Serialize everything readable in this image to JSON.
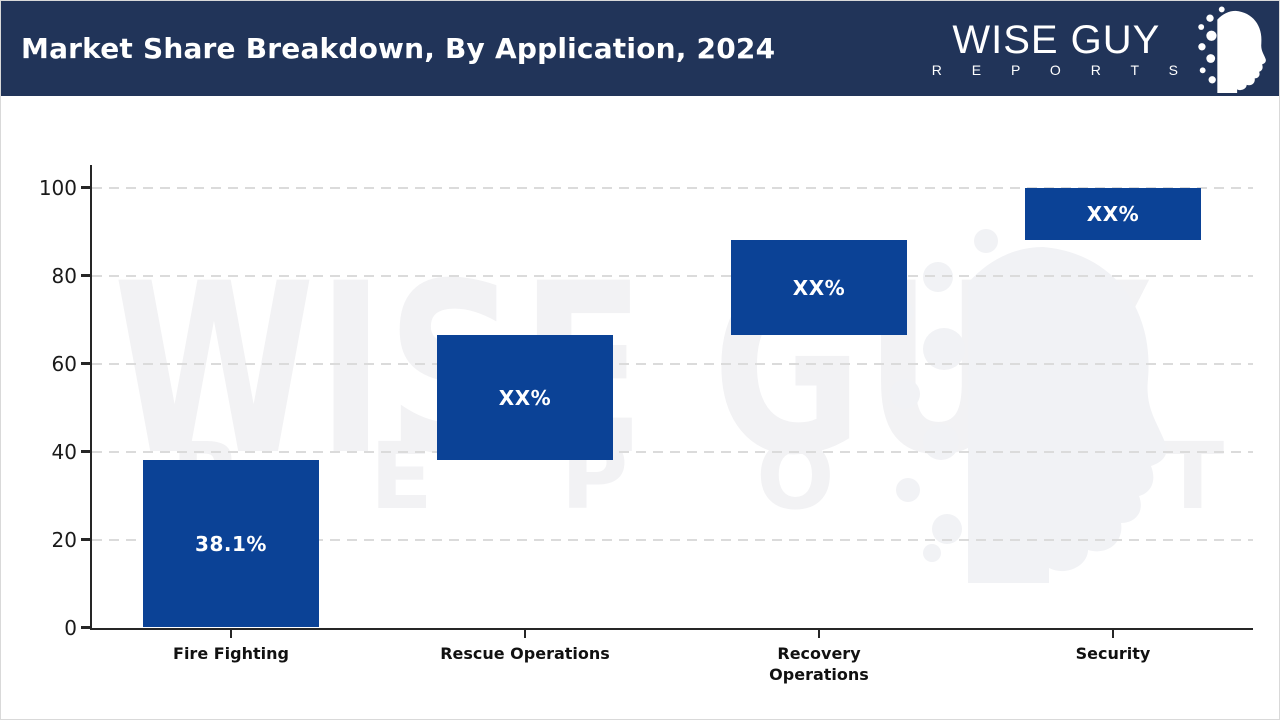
{
  "header": {
    "title": "Market Share Breakdown, By Application, 2024",
    "bg_color": "#213459",
    "logo": {
      "line1": "WISE GUY",
      "line2": "R E P O R T S"
    }
  },
  "watermark": {
    "line1": "WISE GUY",
    "line2": "R E P O R T S"
  },
  "chart_data": {
    "type": "bar",
    "subtype": "waterfall",
    "title": "Market Share Breakdown, By Application, 2024",
    "categories": [
      "Fire Fighting",
      "Rescue Operations",
      "Recovery Operations",
      "Security"
    ],
    "xtick_labels": [
      "Fire Fighting",
      "Rescue Operations",
      "Recovery\nOperations",
      "Security"
    ],
    "bar_labels": [
      "38.1%",
      "XX%",
      "XX%",
      "XX%"
    ],
    "segments": [
      {
        "start": 0,
        "end": 38.1
      },
      {
        "start": 38.1,
        "end": 66.4
      },
      {
        "start": 66.4,
        "end": 88.0
      },
      {
        "start": 88.0,
        "end": 100.0
      }
    ],
    "yticks": [
      0,
      20,
      40,
      60,
      80,
      100
    ],
    "ylim": [
      0,
      100
    ],
    "grid": "horizontal-dashed",
    "legend": "none",
    "colors": {
      "bar": "#0B4296",
      "grid": "#dbdbdb",
      "axis": "#262626",
      "watermark": "#f2f2f4"
    }
  }
}
